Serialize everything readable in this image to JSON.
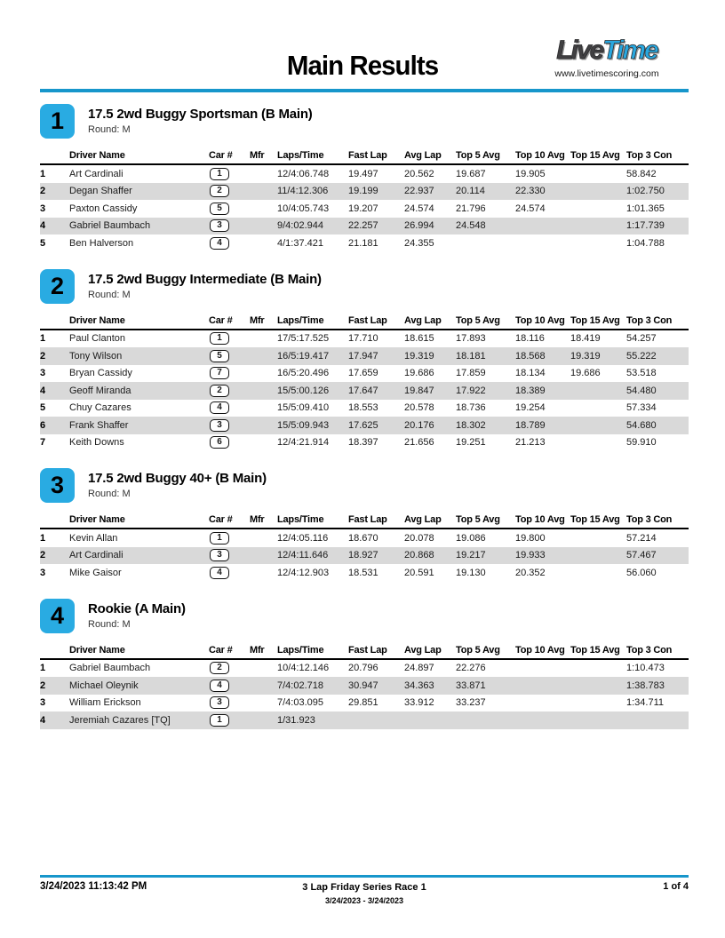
{
  "page": {
    "title": "Main Results"
  },
  "logo": {
    "live": "Live",
    "time": "Time",
    "url": "www.livetimescoring.com"
  },
  "colors": {
    "accent_rule": "#1796cb",
    "section_badge": "#29abe2",
    "row_alt": "#d9d9d9"
  },
  "columns": [
    "Driver Name",
    "Car #",
    "Mfr",
    "Laps/Time",
    "Fast Lap",
    "Avg Lap",
    "Top 5 Avg",
    "Top 10 Avg",
    "Top 15 Avg",
    "Top 3 Con"
  ],
  "sections": [
    {
      "number": "1",
      "title": "17.5 2wd Buggy Sportsman (B Main)",
      "round": "Round: M",
      "rows": [
        {
          "pos": "1",
          "driver": "Art Cardinali",
          "car": "1",
          "mfr": "",
          "laps_time": "12/4:06.748",
          "fast": "19.497",
          "avg": "20.562",
          "top5": "19.687",
          "top10": "19.905",
          "top15": "",
          "top3con": "58.842"
        },
        {
          "pos": "2",
          "driver": "Degan Shaffer",
          "car": "2",
          "mfr": "",
          "laps_time": "11/4:12.306",
          "fast": "19.199",
          "avg": "22.937",
          "top5": "20.114",
          "top10": "22.330",
          "top15": "",
          "top3con": "1:02.750"
        },
        {
          "pos": "3",
          "driver": "Paxton Cassidy",
          "car": "5",
          "mfr": "",
          "laps_time": "10/4:05.743",
          "fast": "19.207",
          "avg": "24.574",
          "top5": "21.796",
          "top10": "24.574",
          "top15": "",
          "top3con": "1:01.365"
        },
        {
          "pos": "4",
          "driver": "Gabriel Baumbach",
          "car": "3",
          "mfr": "",
          "laps_time": "9/4:02.944",
          "fast": "22.257",
          "avg": "26.994",
          "top5": "24.548",
          "top10": "",
          "top15": "",
          "top3con": "1:17.739"
        },
        {
          "pos": "5",
          "driver": "Ben Halverson",
          "car": "4",
          "mfr": "",
          "laps_time": "4/1:37.421",
          "fast": "21.181",
          "avg": "24.355",
          "top5": "",
          "top10": "",
          "top15": "",
          "top3con": "1:04.788"
        }
      ]
    },
    {
      "number": "2",
      "title": "17.5 2wd Buggy Intermediate (B Main)",
      "round": "Round: M",
      "rows": [
        {
          "pos": "1",
          "driver": "Paul Clanton",
          "car": "1",
          "mfr": "",
          "laps_time": "17/5:17.525",
          "fast": "17.710",
          "avg": "18.615",
          "top5": "17.893",
          "top10": "18.116",
          "top15": "18.419",
          "top3con": "54.257"
        },
        {
          "pos": "2",
          "driver": "Tony Wilson",
          "car": "5",
          "mfr": "",
          "laps_time": "16/5:19.417",
          "fast": "17.947",
          "avg": "19.319",
          "top5": "18.181",
          "top10": "18.568",
          "top15": "19.319",
          "top3con": "55.222"
        },
        {
          "pos": "3",
          "driver": "Bryan Cassidy",
          "car": "7",
          "mfr": "",
          "laps_time": "16/5:20.496",
          "fast": "17.659",
          "avg": "19.686",
          "top5": "17.859",
          "top10": "18.134",
          "top15": "19.686",
          "top3con": "53.518"
        },
        {
          "pos": "4",
          "driver": "Geoff Miranda",
          "car": "2",
          "mfr": "",
          "laps_time": "15/5:00.126",
          "fast": "17.647",
          "avg": "19.847",
          "top5": "17.922",
          "top10": "18.389",
          "top15": "",
          "top3con": "54.480"
        },
        {
          "pos": "5",
          "driver": "Chuy Cazares",
          "car": "4",
          "mfr": "",
          "laps_time": "15/5:09.410",
          "fast": "18.553",
          "avg": "20.578",
          "top5": "18.736",
          "top10": "19.254",
          "top15": "",
          "top3con": "57.334"
        },
        {
          "pos": "6",
          "driver": "Frank Shaffer",
          "car": "3",
          "mfr": "",
          "laps_time": "15/5:09.943",
          "fast": "17.625",
          "avg": "20.176",
          "top5": "18.302",
          "top10": "18.789",
          "top15": "",
          "top3con": "54.680"
        },
        {
          "pos": "7",
          "driver": "Keith Downs",
          "car": "6",
          "mfr": "",
          "laps_time": "12/4:21.914",
          "fast": "18.397",
          "avg": "21.656",
          "top5": "19.251",
          "top10": "21.213",
          "top15": "",
          "top3con": "59.910"
        }
      ]
    },
    {
      "number": "3",
      "title": "17.5 2wd Buggy 40+ (B Main)",
      "round": "Round: M",
      "rows": [
        {
          "pos": "1",
          "driver": "Kevin Allan",
          "car": "1",
          "mfr": "",
          "laps_time": "12/4:05.116",
          "fast": "18.670",
          "avg": "20.078",
          "top5": "19.086",
          "top10": "19.800",
          "top15": "",
          "top3con": "57.214"
        },
        {
          "pos": "2",
          "driver": "Art Cardinali",
          "car": "3",
          "mfr": "",
          "laps_time": "12/4:11.646",
          "fast": "18.927",
          "avg": "20.868",
          "top5": "19.217",
          "top10": "19.933",
          "top15": "",
          "top3con": "57.467"
        },
        {
          "pos": "3",
          "driver": "Mike Gaisor",
          "car": "4",
          "mfr": "",
          "laps_time": "12/4:12.903",
          "fast": "18.531",
          "avg": "20.591",
          "top5": "19.130",
          "top10": "20.352",
          "top15": "",
          "top3con": "56.060"
        }
      ]
    },
    {
      "number": "4",
      "title": "Rookie (A Main)",
      "round": "Round: M",
      "rows": [
        {
          "pos": "1",
          "driver": "Gabriel Baumbach",
          "car": "2",
          "mfr": "",
          "laps_time": "10/4:12.146",
          "fast": "20.796",
          "avg": "24.897",
          "top5": "22.276",
          "top10": "",
          "top15": "",
          "top3con": "1:10.473"
        },
        {
          "pos": "2",
          "driver": "Michael Oleynik",
          "car": "4",
          "mfr": "",
          "laps_time": "7/4:02.718",
          "fast": "30.947",
          "avg": "34.363",
          "top5": "33.871",
          "top10": "",
          "top15": "",
          "top3con": "1:38.783"
        },
        {
          "pos": "3",
          "driver": "William Erickson",
          "car": "3",
          "mfr": "",
          "laps_time": "7/4:03.095",
          "fast": "29.851",
          "avg": "33.912",
          "top5": "33.237",
          "top10": "",
          "top15": "",
          "top3con": "1:34.711"
        },
        {
          "pos": "4",
          "driver": "Jeremiah Cazares [TQ]",
          "car": "1",
          "mfr": "",
          "laps_time": "1/31.923",
          "fast": "",
          "avg": "",
          "top5": "",
          "top10": "",
          "top15": "",
          "top3con": ""
        }
      ]
    }
  ],
  "footer": {
    "printed_at": "3/24/2023 11:13:42 PM",
    "event_name": "3 Lap Friday Series Race 1",
    "event_dates": "3/24/2023 - 3/24/2023",
    "page_number": "1 of 4"
  }
}
